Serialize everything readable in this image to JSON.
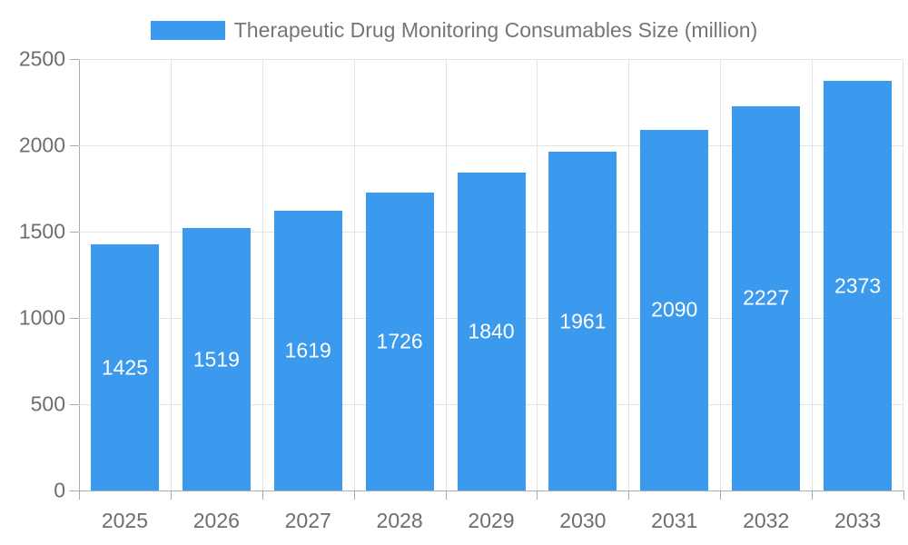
{
  "chart_data": {
    "type": "bar",
    "title": "Therapeutic Drug Monitoring Consumables Size (million)",
    "categories": [
      "2025",
      "2026",
      "2027",
      "2028",
      "2029",
      "2030",
      "2031",
      "2032",
      "2033"
    ],
    "values": [
      1425,
      1519,
      1619,
      1726,
      1840,
      1961,
      2090,
      2227,
      2373
    ],
    "xlabel": "",
    "ylabel": "",
    "ylim": [
      0,
      2500
    ],
    "y_ticks": [
      0,
      500,
      1000,
      1500,
      2000,
      2500
    ],
    "grid": true,
    "legend_position": "top-center",
    "colors": {
      "bar": "#3b99ee",
      "bar_value_label": "#ffffff",
      "axis_line": "#aaaaaa",
      "gridline": "#e4e4e4",
      "axis_text": "#6e6e6e",
      "title_text": "#757575"
    }
  }
}
